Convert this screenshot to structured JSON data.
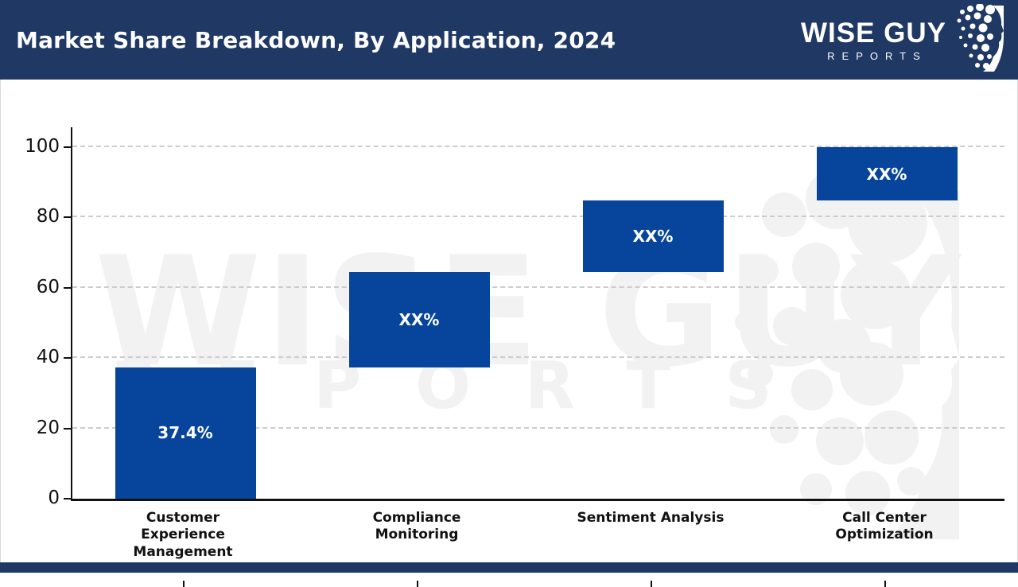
{
  "header": {
    "title": "Market Share Breakdown, By Application, 2024",
    "logo": {
      "line1": "WISE GUY",
      "line2": "REPORTS"
    }
  },
  "watermark": {
    "line1": "WISE GUY",
    "line2": "REPORTS"
  },
  "chart_data": {
    "type": "bar",
    "variant": "floating-segment-waterfall",
    "title": "Market Share Breakdown, By Application, 2024",
    "categories": [
      "Customer Experience Management",
      "Compliance Monitoring",
      "Sentiment Analysis",
      "Call Center Optimization"
    ],
    "category_display": [
      "Customer\nExperience\nManagement",
      "Compliance\nMonitoring",
      "Sentiment Analysis",
      "Call Center\nOptimization"
    ],
    "bars": [
      {
        "start": 0,
        "end": 37.4,
        "label": "37.4%"
      },
      {
        "start": 37.4,
        "end": 64.5,
        "label": "XX%"
      },
      {
        "start": 64.5,
        "end": 84.8,
        "label": "XX%"
      },
      {
        "start": 84.8,
        "end": 100,
        "label": "XX%"
      }
    ],
    "yticks": [
      0,
      20,
      40,
      60,
      80,
      100
    ],
    "ylim": [
      0,
      105.7
    ],
    "xlabel": "",
    "ylabel": "",
    "grid": "horizontal-dashed",
    "legend": "none"
  },
  "colors": {
    "header_bg": "#1F3864",
    "footer_bg": "#1F3864",
    "bar": "#07459C",
    "bar_label": "#FFFFFF",
    "grid": "#CCCCCC",
    "axis": "#111111",
    "watermark": "#F2F2F2",
    "panel_border": "#D9D9D9"
  }
}
